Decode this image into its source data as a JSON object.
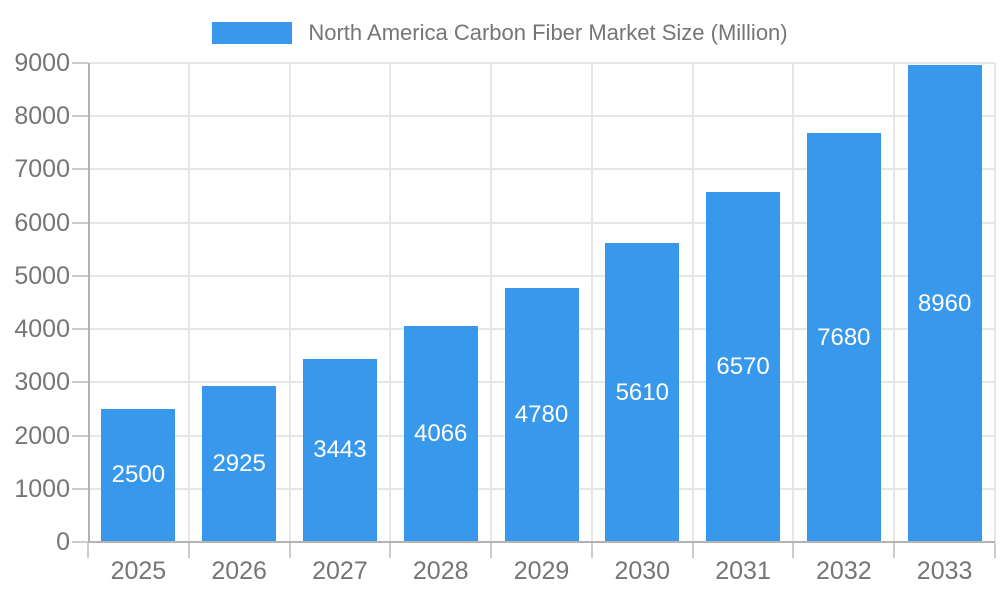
{
  "chart_data": {
    "type": "bar",
    "title": "",
    "series": [
      {
        "name": "North America Carbon Fiber Market Size (Million)",
        "values": [
          2500,
          2925,
          3443,
          4066,
          4780,
          5610,
          6570,
          7680,
          8960
        ]
      }
    ],
    "categories": [
      "2025",
      "2026",
      "2027",
      "2028",
      "2029",
      "2030",
      "2031",
      "2032",
      "2033"
    ],
    "bar_value_labels": [
      "2500",
      "2925",
      "3443",
      "4066",
      "4780",
      "5610",
      "6570",
      "7680",
      "8960"
    ],
    "xlabel": "",
    "ylabel": "",
    "ylim": [
      0,
      9000
    ],
    "y_tick_step": 1000,
    "y_tick_labels": [
      "0",
      "1000",
      "2000",
      "3000",
      "4000",
      "5000",
      "6000",
      "7000",
      "8000",
      "9000"
    ],
    "grid": true,
    "legend_position": "top"
  },
  "legend": {
    "label": "North America Carbon Fiber Market Size (Million)"
  },
  "colors": {
    "bar": "#3898ec",
    "bar_label_text": "#ffffff",
    "legend_text": "#757575",
    "axis_text": "#757575",
    "grid_line": "#e6e6e6",
    "axis_line": "#b3b3b3",
    "tick_line": "#cccccc"
  }
}
